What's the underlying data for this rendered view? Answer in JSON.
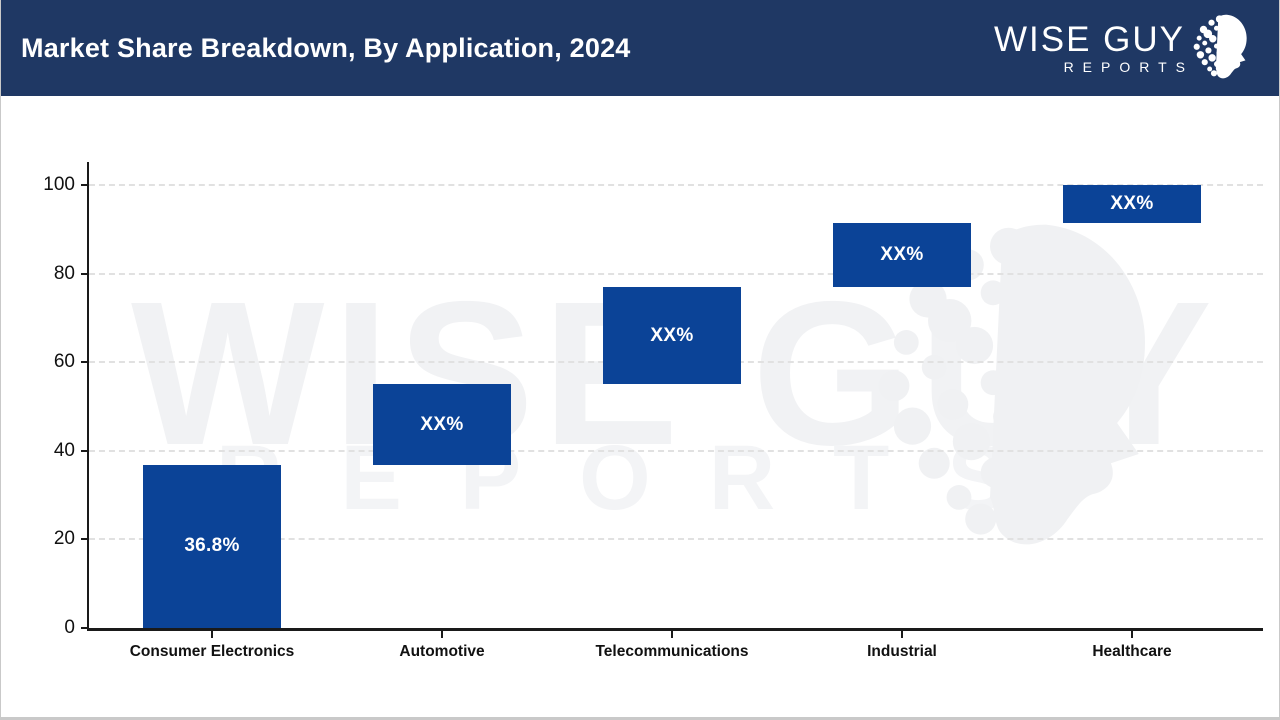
{
  "header": {
    "title": "Market Share Breakdown, By Application, 2024",
    "bg_color": "#1f3864",
    "logo": {
      "line1": "WISE GUY",
      "line2": "REPORTS",
      "icon": "dotted-head-profile"
    }
  },
  "watermark": {
    "line1": "WISE GUY",
    "line2": "REPORTS",
    "icon": "dotted-head-profile"
  },
  "chart_data": {
    "type": "bar",
    "variant": "waterfall-stacked",
    "title": "Market Share Breakdown, By Application, 2024",
    "categories": [
      "Consumer Electronics",
      "Automotive",
      "Telecommunications",
      "Industrial",
      "Healthcare"
    ],
    "segments": [
      {
        "category": "Consumer Electronics",
        "start": 0,
        "end": 36.8,
        "value": 36.8,
        "label": "36.8%"
      },
      {
        "category": "Automotive",
        "start": 36.8,
        "end": 55,
        "value": 18.2,
        "label": "XX%"
      },
      {
        "category": "Telecommunications",
        "start": 55,
        "end": 77,
        "value": 22,
        "label": "XX%"
      },
      {
        "category": "Industrial",
        "start": 77,
        "end": 91.5,
        "value": 14.5,
        "label": "XX%"
      },
      {
        "category": "Healthcare",
        "start": 91.5,
        "end": 100,
        "value": 8.5,
        "label": "XX%"
      }
    ],
    "y_ticks": [
      0,
      20,
      40,
      60,
      80,
      100
    ],
    "ylim": [
      0,
      105
    ],
    "xlabel": "",
    "ylabel": "",
    "grid": "horizontal-dashed",
    "legend": "none",
    "colors": {
      "bar": "#0b4397",
      "bar_label": "#ffffff",
      "axis": "#1a1a1a",
      "grid": "#e1e1e1",
      "header_bg": "#1f3864",
      "title_text": "#ffffff",
      "watermark": "#f1f2f4"
    }
  }
}
